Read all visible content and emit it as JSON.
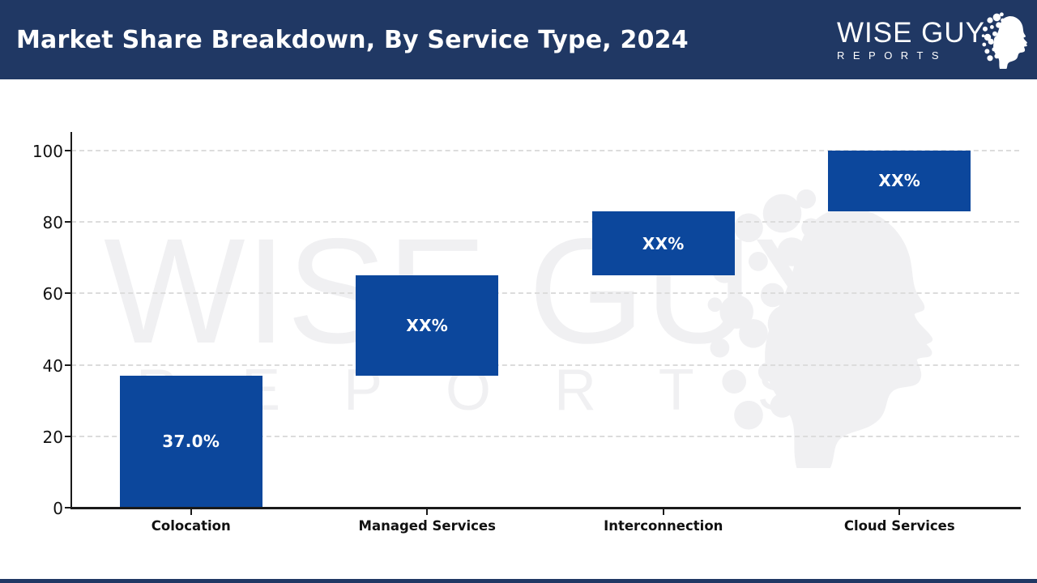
{
  "header": {
    "title": "Market Share Breakdown, By Service Type, 2024",
    "logo": {
      "brand_top": "WISE GUY",
      "brand_bottom": "REPORTS",
      "face_icon": "dotted-head-profile-icon"
    }
  },
  "watermark": {
    "text_large": "WISE GUY",
    "text_small": "REPORTS",
    "face_icon": "dotted-head-profile-watermark"
  },
  "colors": {
    "header_bg": "#203864",
    "footer_bg": "#203864",
    "bar": "#0c479c",
    "grid": "#dcdcdc",
    "axis": "#1a1a1a",
    "watermark": "#f0f0f2",
    "title_text": "#ffffff",
    "bar_label_text": "#ffffff"
  },
  "chart_data": {
    "type": "bar",
    "variant": "waterfall",
    "title": "Market Share Breakdown, By Service Type, 2024",
    "xlabel": "",
    "ylabel": "",
    "categories": [
      "Colocation",
      "Managed Services",
      "Interconnection",
      "Cloud Services"
    ],
    "segments": [
      {
        "category": "Colocation",
        "start": 0,
        "end": 37,
        "label": "37.0%"
      },
      {
        "category": "Managed Services",
        "start": 37,
        "end": 65,
        "label": "XX%"
      },
      {
        "category": "Interconnection",
        "start": 65,
        "end": 83,
        "label": "XX%"
      },
      {
        "category": "Cloud Services",
        "start": 83,
        "end": 100,
        "label": "XX%"
      }
    ],
    "yticks": [
      0,
      20,
      40,
      60,
      80,
      100
    ],
    "ylim": [
      0,
      105
    ],
    "grid": "horizontal-dashed",
    "legend": "none",
    "bar_color": "#0c479c"
  }
}
